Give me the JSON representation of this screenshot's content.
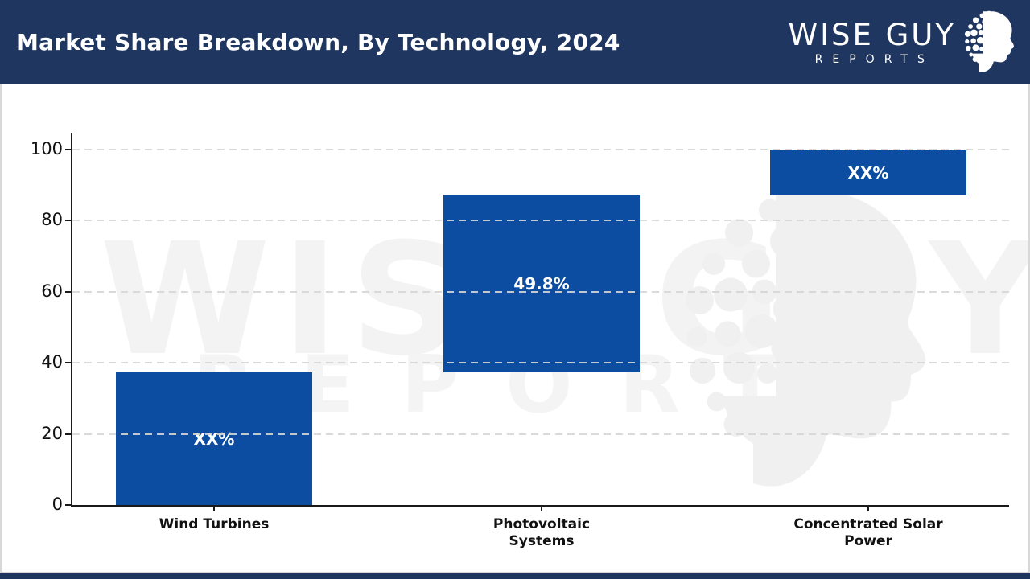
{
  "header": {
    "title": "Market Share Breakdown, By Technology, 2024",
    "logo": {
      "wordmark": "WISE GUY",
      "sub": "REPORTS"
    }
  },
  "watermark": {
    "wordmark": "WISE GUY",
    "sub": "REPORTS"
  },
  "chart_data": {
    "type": "bar",
    "subtype": "floating-waterfall",
    "title": "Market Share Breakdown, By Technology, 2024",
    "categories": [
      "Wind Turbines",
      "Photovoltaic Systems",
      "Concentrated Solar Power"
    ],
    "category_lines": [
      [
        "Wind Turbines"
      ],
      [
        "Photovoltaic",
        "Systems"
      ],
      [
        "Concentrated Solar",
        "Power"
      ]
    ],
    "segments": [
      {
        "category": "Wind Turbines",
        "start": 0,
        "end": 37.4,
        "label": "XX%"
      },
      {
        "category": "Photovoltaic Systems",
        "start": 37.4,
        "end": 87.2,
        "label": "49.8%"
      },
      {
        "category": "Concentrated Solar Power",
        "start": 87.2,
        "end": 100,
        "label": "XX%"
      }
    ],
    "ylim": [
      0,
      100
    ],
    "yticks": [
      0,
      20,
      40,
      60,
      80,
      100
    ],
    "xlabel": "",
    "ylabel": "",
    "legend": "none",
    "grid": "horizontal-dashed"
  },
  "colors": {
    "header_bg": "#1f3660",
    "footer_bg": "#1f3660",
    "bar": "#0c4da2",
    "bar_label": "#ffffff",
    "axis": "#1a1a1a",
    "grid": "#d6d6d6",
    "watermark": "#f3f3f3",
    "panel_border": "#d8d8d8"
  }
}
